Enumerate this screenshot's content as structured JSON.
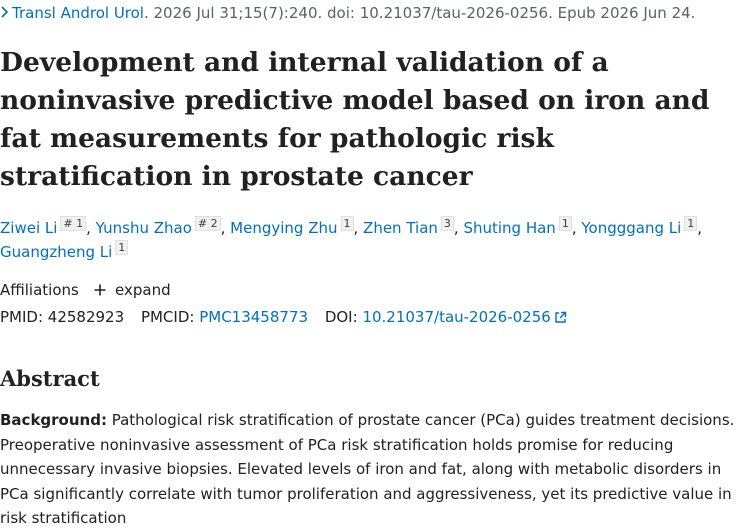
{
  "citation": {
    "journal": "Transl Androl Urol.",
    "details": " 2026 Jul 31;15(7):240. doi: 10.21037/tau-2026-0256. Epub 2026 Jun 24."
  },
  "title": "Development and internal validation of a noninvasive predictive model based on iron and fat measurements for pathologic risk stratification in prostate cancer",
  "authors": [
    {
      "name": "Ziwei Li",
      "sup": "# 1"
    },
    {
      "name": "Yunshu Zhao",
      "sup": "# 2"
    },
    {
      "name": "Mengying Zhu",
      "sup": "1"
    },
    {
      "name": "Zhen Tian",
      "sup": "3"
    },
    {
      "name": "Shuting Han",
      "sup": "1"
    },
    {
      "name": "Yongggang Li",
      "sup": "1"
    },
    {
      "name": "Guangzheng Li",
      "sup": "1"
    }
  ],
  "affiliations": {
    "label": "Affiliations",
    "expand": "expand",
    "expand_icon": "plus-icon"
  },
  "identifiers": {
    "pmid_label": "PMID:",
    "pmid": "42582923",
    "pmcid_label": "PMCID:",
    "pmcid": "PMC13458773",
    "doi_label": "DOI:",
    "doi": "10.21037/tau-2026-0256",
    "doi_icon": "external-link-icon"
  },
  "abstract": {
    "heading": "Abstract",
    "background_label": "Background:",
    "background_text": " Pathological risk stratification of prostate cancer (PCa) guides treatment decisions. Preoperative noninvasive assessment of PCa risk stratification holds promise for reducing unnecessary invasive biopsies. Elevated levels of iron and fat, along with metabolic disorders in PCa significantly correlate with tumor proliferation and aggressiveness, yet its predictive value in risk stratification"
  },
  "colors": {
    "link": "#0071bc",
    "text": "#212121",
    "muted": "#5b616b"
  }
}
